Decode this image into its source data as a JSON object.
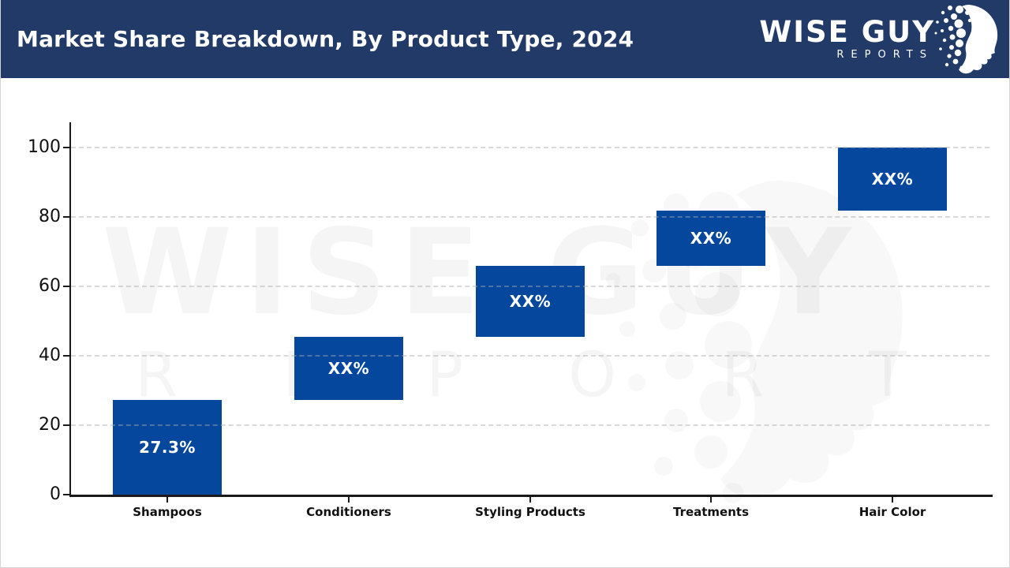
{
  "header": {
    "title": "Market Share Breakdown, By Product Type, 2024",
    "logo": {
      "line1": "WISE GUY",
      "line2": "REPORTS"
    }
  },
  "watermark": {
    "line1": "WISE GUY",
    "line2": "R E P O R T S"
  },
  "colors": {
    "header_bg": "#213a68",
    "header_text": "#ffffff",
    "bar": "#05479d",
    "bar_label": "#ffffff",
    "axis": "#1a1a1a"
  },
  "chart_data": {
    "type": "bar",
    "subtype": "waterfall",
    "title": "Market Share Breakdown, By Product Type, 2024",
    "categories": [
      "Shampoos",
      "Conditioners",
      "Styling Products",
      "Treatments",
      "Hair Color"
    ],
    "bars": [
      {
        "category": "Shampoos",
        "start": 0,
        "end": 27.3,
        "label": "27.3%"
      },
      {
        "category": "Conditioners",
        "start": 27.3,
        "end": 45.5,
        "label": "XX%"
      },
      {
        "category": "Styling Products",
        "start": 45.5,
        "end": 65.9,
        "label": "XX%"
      },
      {
        "category": "Treatments",
        "start": 65.9,
        "end": 81.8,
        "label": "XX%"
      },
      {
        "category": "Hair Color",
        "start": 81.8,
        "end": 100,
        "label": "XX%"
      }
    ],
    "xlabel": "",
    "ylabel": "",
    "ylim": [
      0,
      100
    ],
    "yticks": [
      0,
      20,
      40,
      60,
      80,
      100
    ],
    "grid": true,
    "legend": false
  }
}
